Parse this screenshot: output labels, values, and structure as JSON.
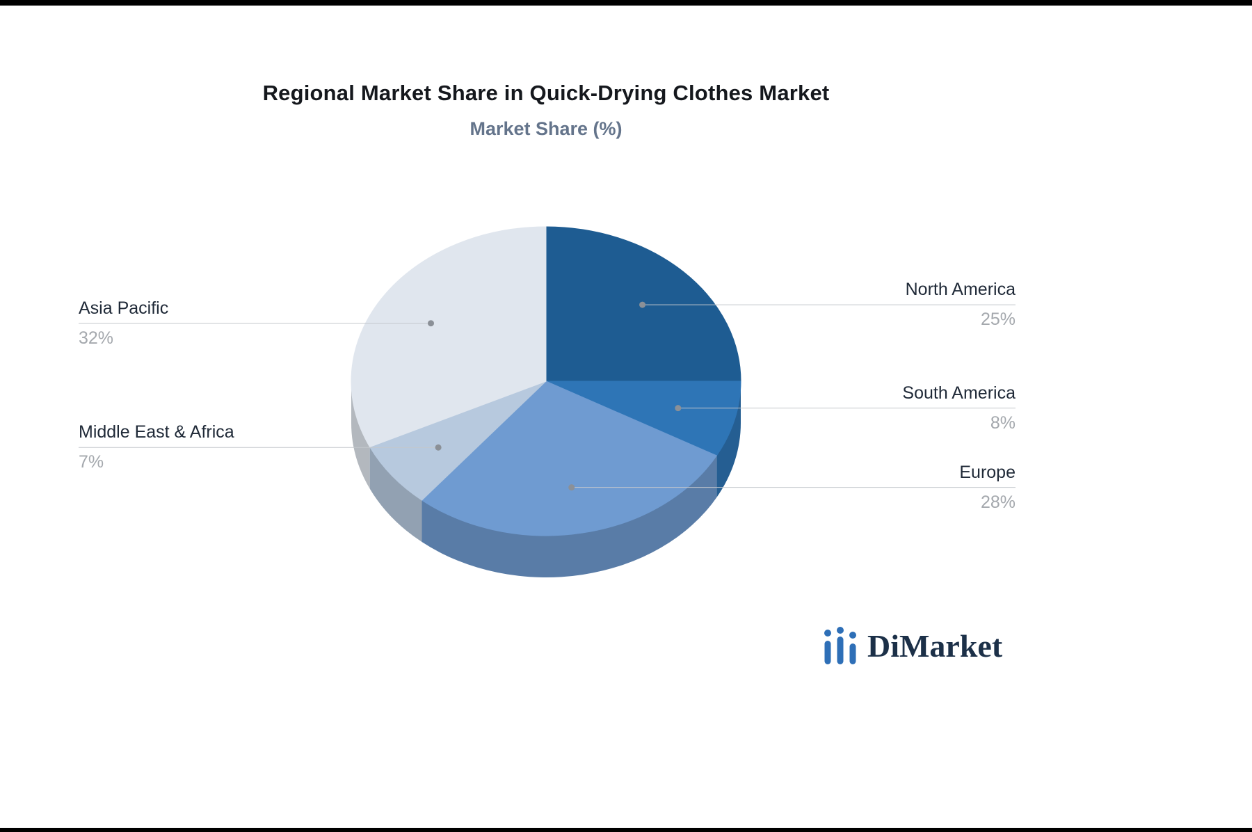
{
  "chart_data": {
    "type": "pie",
    "title": "Regional Market Share in Quick-Drying Clothes Market",
    "subtitle": "Market Share (%)",
    "style": "3d",
    "unit": "%",
    "start_angle_deg": 0,
    "direction": "clockwise",
    "legend_position": "none",
    "label_style": "leader-lines",
    "slices": [
      {
        "label": "North America",
        "value": 25,
        "display": "25%",
        "color": "#1e5c92",
        "label_side": "right"
      },
      {
        "label": "South America",
        "value": 8,
        "display": "8%",
        "color": "#2e75b6",
        "label_side": "right"
      },
      {
        "label": "Europe",
        "value": 28,
        "display": "28%",
        "color": "#6f9bd1",
        "label_side": "right"
      },
      {
        "label": "Middle East & Africa",
        "value": 7,
        "display": "7%",
        "color": "#b7c9de",
        "label_side": "left"
      },
      {
        "label": "Asia Pacific",
        "value": 32,
        "display": "32%",
        "color": "#e0e6ee",
        "label_side": "left"
      }
    ],
    "leader_line_color": "#c3c7cc",
    "leader_dot_color": "#8b9097"
  },
  "branding": {
    "logo_text": "DiMarket",
    "logo_color": "#1c3048",
    "icon_color": "#2e6fb7",
    "icon": "bar-chart-icon"
  }
}
